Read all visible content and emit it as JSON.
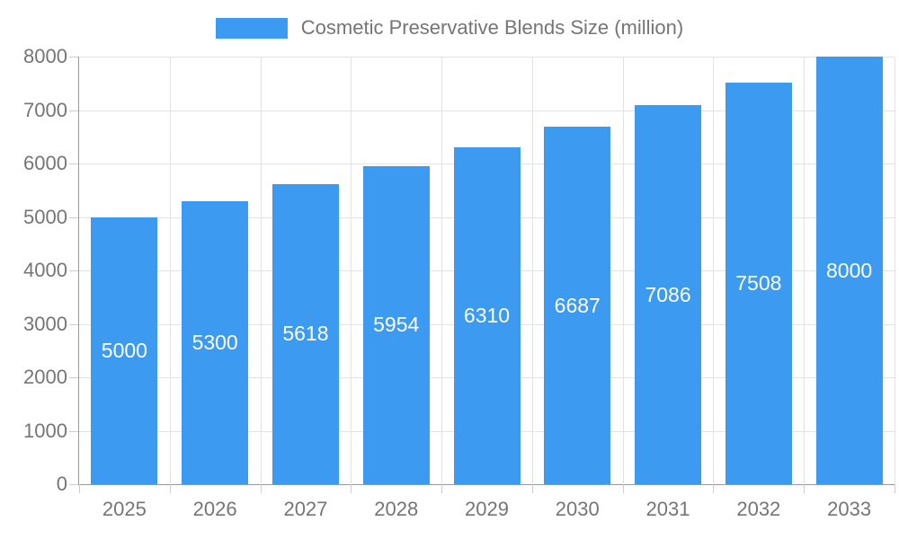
{
  "chart_data": {
    "type": "bar",
    "title": "Cosmetic Preservative Blends Size (million)",
    "categories": [
      "2025",
      "2026",
      "2027",
      "2028",
      "2029",
      "2030",
      "2031",
      "2032",
      "2033"
    ],
    "values": [
      5000,
      5300,
      5618,
      5954,
      6310,
      6687,
      7086,
      7508,
      8000
    ],
    "xlabel": "",
    "ylabel": "",
    "ylim": [
      0,
      8000
    ],
    "yticks": [
      0,
      1000,
      2000,
      3000,
      4000,
      5000,
      6000,
      7000,
      8000
    ],
    "legend_position": "top",
    "grid": true,
    "bar_labels_visible": true,
    "colors": {
      "bar": "#3C9AF0",
      "bar_label": "#FFFFFF",
      "axis_text": "#757575",
      "axis_line": "#999999",
      "gridline": "#E3E3E3",
      "tick": "#CCCCCC",
      "background": "#FFFFFF"
    }
  }
}
